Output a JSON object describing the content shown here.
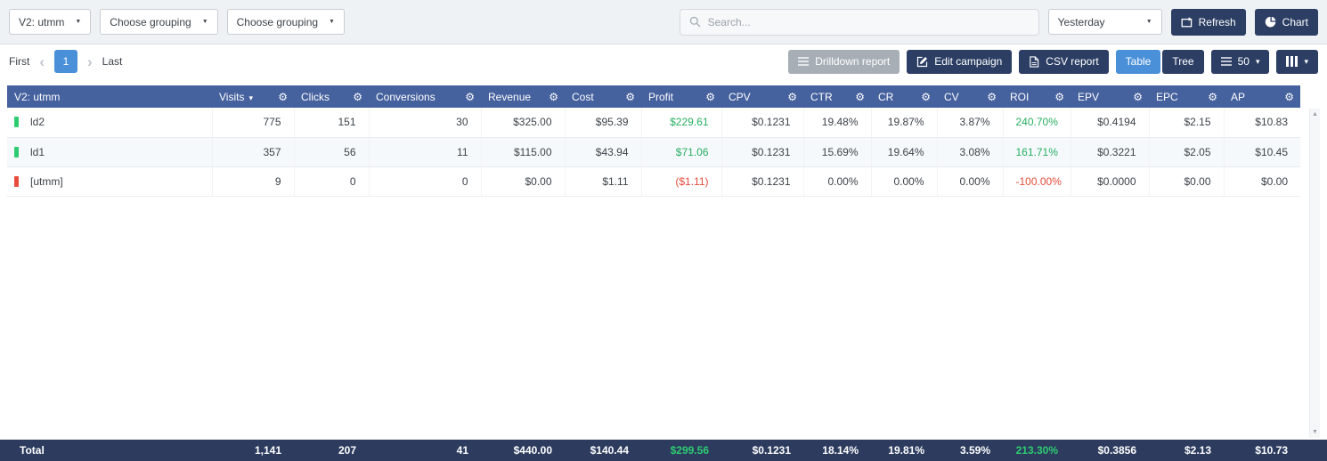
{
  "colors": {
    "accent_blue": "#4a90d9",
    "button_navy": "#2c3e64",
    "header_blue": "#45619e",
    "total_navy": "#2c3b5e",
    "positive_green": "#27ae60",
    "negative_red": "#e74c3c"
  },
  "icons": {
    "gear": "⚙",
    "sort_desc": "▾",
    "caret_down": "▼",
    "btn_caret": "▾",
    "chevron_left": "‹",
    "chevron_right": "›",
    "scroll_up": "▲",
    "scroll_down": "▼"
  },
  "toolbar": {
    "campaign_select": "V2: utmm",
    "grouping1": "Choose grouping",
    "grouping2": "Choose grouping",
    "search_placeholder": "Search...",
    "date_range": "Yesterday",
    "refresh_label": "Refresh",
    "chart_label": "Chart"
  },
  "actionbar": {
    "first_label": "First",
    "page_label": "1",
    "last_label": "Last",
    "drilldown_label": "Drilldown report",
    "edit_label": "Edit campaign",
    "csv_label": "CSV report",
    "table_label": "Table",
    "tree_label": "Tree",
    "rows_label": "50"
  },
  "table": {
    "columns": [
      {
        "label": "V2: utmm",
        "gear": false,
        "sorted": false
      },
      {
        "label": "Visits",
        "gear": true,
        "sorted": true
      },
      {
        "label": "Clicks",
        "gear": true,
        "sorted": false
      },
      {
        "label": "Conversions",
        "gear": true,
        "sorted": false
      },
      {
        "label": "Revenue",
        "gear": true,
        "sorted": false
      },
      {
        "label": "Cost",
        "gear": true,
        "sorted": false
      },
      {
        "label": "Profit",
        "gear": true,
        "sorted": false
      },
      {
        "label": "CPV",
        "gear": true,
        "sorted": false
      },
      {
        "label": "CTR",
        "gear": true,
        "sorted": false
      },
      {
        "label": "CR",
        "gear": true,
        "sorted": false
      },
      {
        "label": "CV",
        "gear": true,
        "sorted": false
      },
      {
        "label": "ROI",
        "gear": true,
        "sorted": false
      },
      {
        "label": "EPV",
        "gear": true,
        "sorted": false
      },
      {
        "label": "EPC",
        "gear": true,
        "sorted": false
      },
      {
        "label": "AP",
        "gear": true,
        "sorted": false
      }
    ],
    "rows": [
      {
        "status": "green",
        "trend": "positive",
        "label": "ld2",
        "values": [
          "775",
          "151",
          "30",
          "$325.00",
          "$95.39",
          "$229.61",
          "$0.1231",
          "19.48%",
          "19.87%",
          "3.87%",
          "240.70%",
          "$0.4194",
          "$2.15",
          "$10.83"
        ]
      },
      {
        "status": "green",
        "trend": "positive",
        "label": "ld1",
        "values": [
          "357",
          "56",
          "11",
          "$115.00",
          "$43.94",
          "$71.06",
          "$0.1231",
          "15.69%",
          "19.64%",
          "3.08%",
          "161.71%",
          "$0.3221",
          "$2.05",
          "$10.45"
        ]
      },
      {
        "status": "red",
        "trend": "negative",
        "label": "[utmm]",
        "values": [
          "9",
          "0",
          "0",
          "$0.00",
          "$1.11",
          "($1.11)",
          "$0.1231",
          "0.00%",
          "0.00%",
          "0.00%",
          "-100.00%",
          "$0.0000",
          "$0.00",
          "$0.00"
        ]
      }
    ],
    "total": {
      "label": "Total",
      "values": [
        "1,141",
        "207",
        "41",
        "$440.00",
        "$140.44",
        "$299.56",
        "$0.1231",
        "18.14%",
        "19.81%",
        "3.59%",
        "213.30%",
        "$0.3856",
        "$2.13",
        "$10.73"
      ]
    }
  }
}
